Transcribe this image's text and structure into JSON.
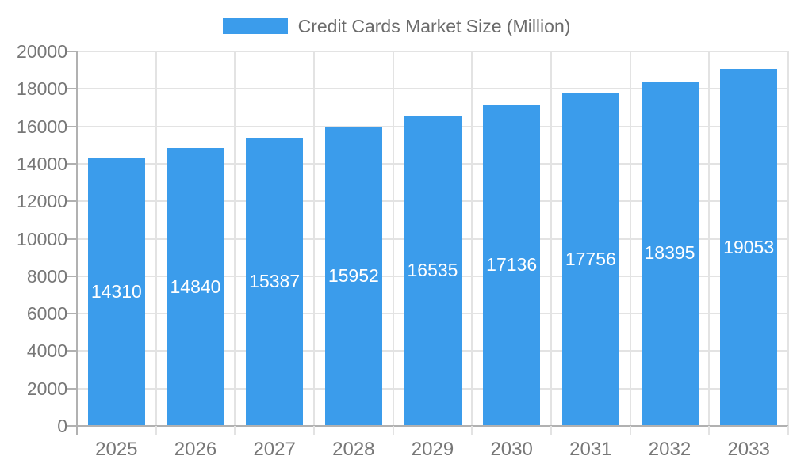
{
  "legend": {
    "label": "Credit Cards Market Size (Million)"
  },
  "chart_data": {
    "type": "bar",
    "title": "Credit Cards Market Size (Million)",
    "series_name": "Credit Cards Market Size (Million)",
    "categories": [
      "2025",
      "2026",
      "2027",
      "2028",
      "2029",
      "2030",
      "2031",
      "2032",
      "2033"
    ],
    "values": [
      14310,
      14840,
      15387,
      15952,
      16535,
      17136,
      17756,
      18395,
      19053
    ],
    "xlabel": "",
    "ylabel": "",
    "ylim": [
      0,
      20000
    ],
    "y_ticks": [
      0,
      2000,
      4000,
      6000,
      8000,
      10000,
      12000,
      14000,
      16000,
      18000,
      20000
    ],
    "grid": true,
    "legend_position": "top-center",
    "data_labels": "inside-middle",
    "colors": {
      "bar": "#3b9ceb",
      "data_label": "#ffffff",
      "axis_line": "#b1b1b1",
      "grid_line": "#e3e3e3",
      "axis_label": "#777777",
      "legend_text": "#6b6b6b",
      "background": "#ffffff"
    }
  }
}
